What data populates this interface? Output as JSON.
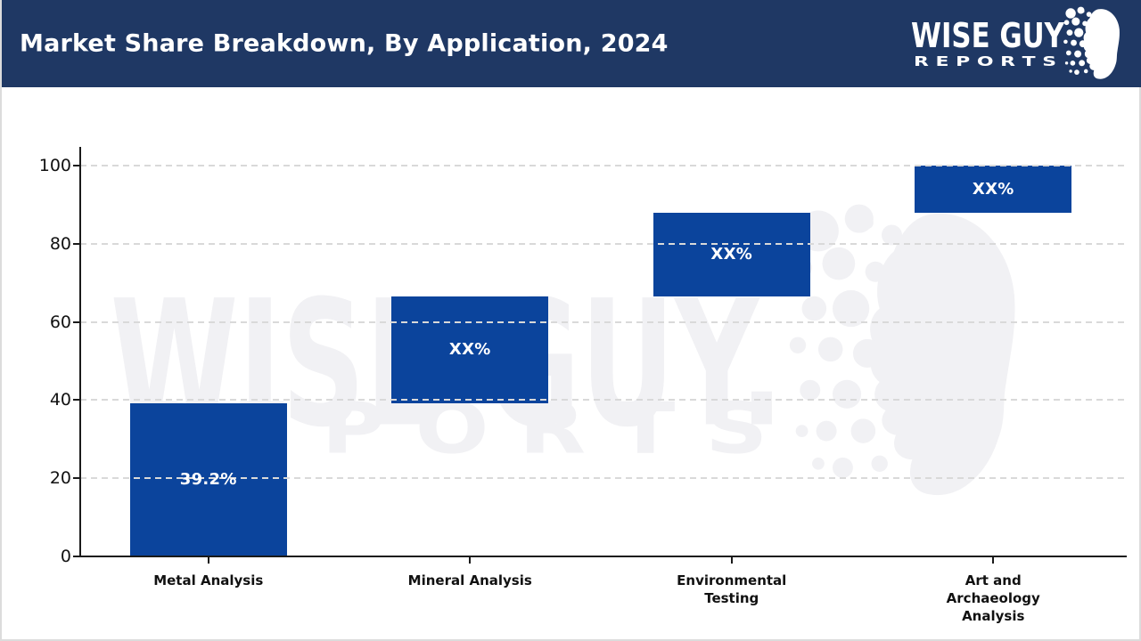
{
  "header": {
    "title": "Market Share Breakdown, By Application, 2024",
    "bg_color": "#1f3864",
    "logo": {
      "name": "WISE GUY",
      "tagline": "R E P O R T S"
    }
  },
  "watermark": {
    "line1": "WISE GUY.",
    "line2": "R E P O R T S"
  },
  "chart_data": {
    "type": "bar",
    "subtype": "waterfall",
    "title": "Market Share Breakdown, By Application, 2024",
    "categories": [
      "Metal Analysis",
      "Mineral Analysis",
      "Environmental\nTesting",
      "Art and\nArchaeology\nAnalysis"
    ],
    "series": [
      {
        "name": "Market Share (%)",
        "segments": [
          {
            "category": "Metal Analysis",
            "start": 0,
            "end": 39.2,
            "label": "39.2%"
          },
          {
            "category": "Mineral Analysis",
            "start": 39.2,
            "end": 66.5,
            "label": "XX%"
          },
          {
            "category": "Environmental Testing",
            "start": 66.5,
            "end": 88,
            "label": "XX%"
          },
          {
            "category": "Art and Archaeology Analysis",
            "start": 88,
            "end": 100,
            "label": "XX%"
          }
        ]
      }
    ],
    "xlabel": "",
    "ylabel": "",
    "ylim": [
      0,
      100
    ],
    "yticks": [
      0,
      20,
      40,
      60,
      80,
      100
    ],
    "grid": "horizontal-dashed",
    "legend": "none",
    "bar_color": "#0b449c",
    "bar_label_color": "#ffffff",
    "axis_color": "#1a1a1a",
    "grid_color": "#d9d9d9"
  }
}
